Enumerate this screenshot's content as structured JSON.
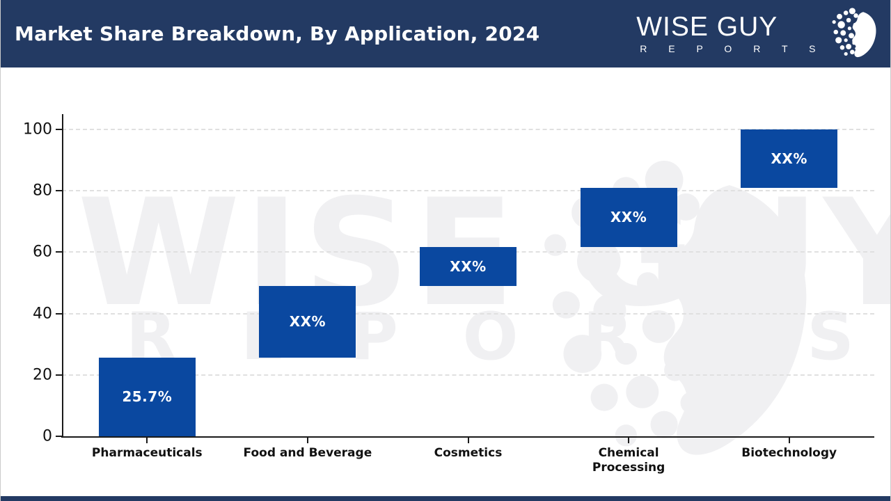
{
  "header": {
    "title": "Market Share Breakdown, By Application, 2024",
    "logo": {
      "primary": "WISE GUY",
      "secondary": "R E P O R T S"
    }
  },
  "watermark": {
    "primary": "WISE GUY",
    "secondary": "R E P O R T S"
  },
  "colors": {
    "header_bg": "#233a63",
    "footer_bg": "#233a63",
    "bar": "#0a48a0",
    "bar_label": "#ffffff",
    "gridline": "#e0e0e0",
    "axis": "#1a1a1a",
    "watermark": "#f0f0f2"
  },
  "chart_data": {
    "type": "bar",
    "subtype": "waterfall",
    "title": "Market Share Breakdown, By Application, 2024",
    "categories": [
      "Pharmaceuticals",
      "Food and Beverage",
      "Cosmetics",
      "Chemical\nProcessing",
      "Biotechnology"
    ],
    "segments": [
      {
        "category": "Pharmaceuticals",
        "start": 0,
        "end": 25.7,
        "label": "25.7%"
      },
      {
        "category": "Food and Beverage",
        "start": 25.7,
        "end": 49.0,
        "label": "XX%"
      },
      {
        "category": "Cosmetics",
        "start": 49.0,
        "end": 61.7,
        "label": "XX%"
      },
      {
        "category": "Chemical\nProcessing",
        "start": 61.7,
        "end": 81.0,
        "label": "XX%"
      },
      {
        "category": "Biotechnology",
        "start": 81.0,
        "end": 100.0,
        "label": "XX%"
      }
    ],
    "yticks": [
      0,
      20,
      40,
      60,
      80,
      100
    ],
    "ylim": [
      0,
      105
    ],
    "xlabel": "",
    "ylabel": "",
    "grid": "horizontal-dashed",
    "legend": "none",
    "bar_color": "#0a48a0",
    "value_label_color": "#ffffff"
  }
}
